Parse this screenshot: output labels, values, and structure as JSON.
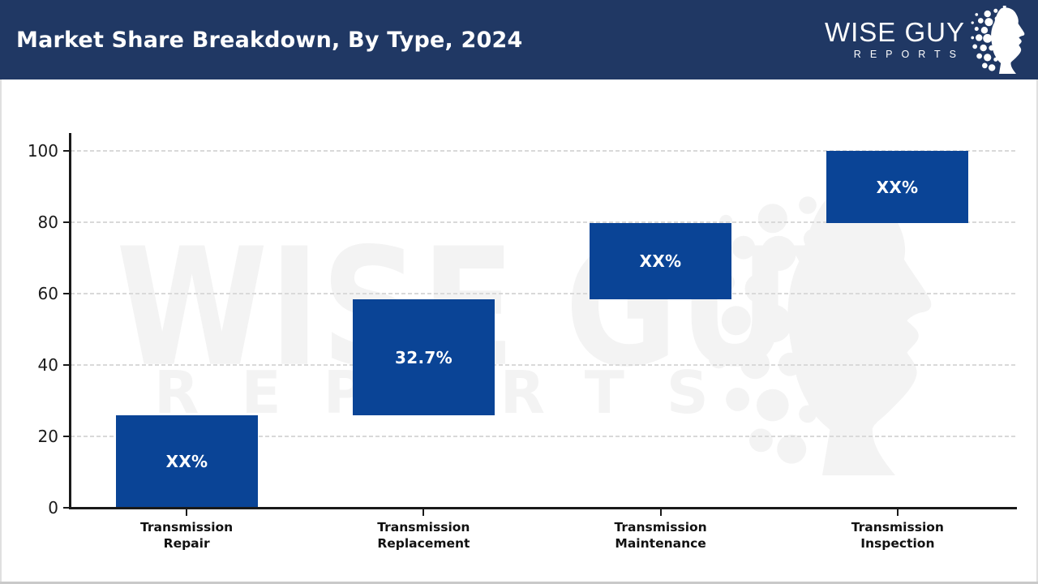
{
  "header": {
    "title": "Market Share Breakdown, By Type, 2024",
    "background": "#203864",
    "logo": {
      "wordmark": "WISE GUY",
      "subtext": "REPORTS"
    }
  },
  "watermark": {
    "line1": "WISE GUY",
    "line2": "REPORTS"
  },
  "chart_data": {
    "type": "bar",
    "subtype": "waterfall",
    "title": "Market Share Breakdown, By Type, 2024",
    "categories": [
      [
        "Transmission",
        "Repair"
      ],
      [
        "Transmission",
        "Replacement"
      ],
      [
        "Transmission",
        "Maintenance"
      ],
      [
        "Transmission",
        "Inspection"
      ]
    ],
    "segments": [
      {
        "start": 0,
        "end": 25.8,
        "label": "XX%"
      },
      {
        "start": 25.8,
        "end": 58.5,
        "label": "32.7%"
      },
      {
        "start": 58.5,
        "end": 79.7,
        "label": "XX%"
      },
      {
        "start": 79.7,
        "end": 100,
        "label": "XX%"
      }
    ],
    "yticks": [
      0,
      20,
      40,
      60,
      80,
      100
    ],
    "ylim": [
      0,
      105
    ],
    "xlabel": "",
    "ylabel": "",
    "grid": "horizontal-dashed",
    "legend": "none",
    "bar_color": "#0a4496",
    "bar_label_color": "#ffffff",
    "axis_color": "#1a1a1a",
    "grid_color": "#d9d9d9"
  }
}
